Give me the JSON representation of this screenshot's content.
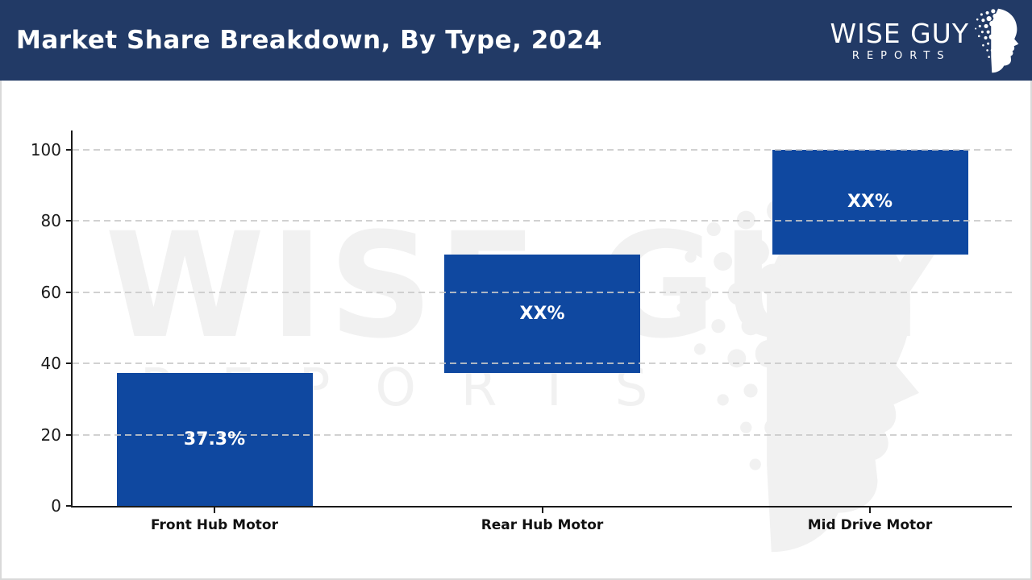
{
  "header": {
    "title": "Market Share Breakdown, By Type, 2024",
    "logo": {
      "line1": "WISE GUY",
      "line2": "REPORTS"
    }
  },
  "watermark": {
    "line1": "WISE GUY",
    "line2": "REPORTS"
  },
  "chart_data": {
    "type": "bar",
    "subtype": "floating-waterfall-segments",
    "title": "Market Share Breakdown, By Type, 2024",
    "categories": [
      "Front Hub Motor",
      "Rear Hub Motor",
      "Mid Drive Motor"
    ],
    "segments": [
      {
        "category": "Front Hub Motor",
        "start": 0,
        "end": 37.3,
        "label": "37.3%"
      },
      {
        "category": "Rear Hub Motor",
        "start": 37.3,
        "end": 70.6,
        "label": "XX%"
      },
      {
        "category": "Mid Drive Motor",
        "start": 70.6,
        "end": 100,
        "label": "XX%"
      }
    ],
    "y_ticks": [
      0,
      20,
      40,
      60,
      80,
      100
    ],
    "ylim": [
      0,
      105
    ],
    "xlabel": "",
    "ylabel": "",
    "grid": "horizontal-dashed",
    "legend": "none",
    "colors": {
      "bar": "#0f48a0",
      "bar_label": "#ffffff",
      "grid": "#c9c9c9",
      "axis": "#1a1a1a"
    }
  },
  "theme": {
    "header_bg": "#223a66",
    "header_text": "#ffffff",
    "watermark": "#f1f1f1",
    "page_bg": "#ffffff",
    "border": "#d9d9d9"
  }
}
